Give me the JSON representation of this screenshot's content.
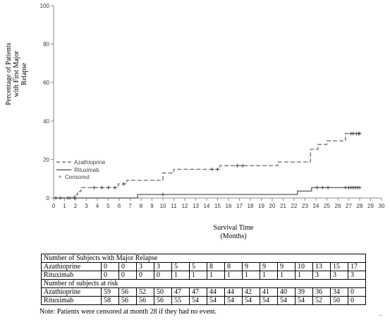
{
  "chart_data": {
    "type": "line",
    "title": "",
    "xlabel": "Survival Time\n(Months)",
    "ylabel": "Percentage of Patients\nwith First Major\nRelapse",
    "xlim": [
      0,
      30
    ],
    "ylim": [
      0,
      100
    ],
    "x_ticks": [
      "0",
      "1",
      "2",
      "3",
      "4",
      "5",
      "6",
      "7",
      "8",
      "9",
      "10",
      "11",
      "12",
      "13",
      "14",
      "15",
      "16",
      "17",
      "18",
      "19",
      "20",
      "21",
      "22",
      "23",
      "24",
      "25",
      "26",
      "27",
      "28",
      "29",
      "30"
    ],
    "y_ticks": [
      "0",
      "20",
      "40",
      "60",
      "80",
      "100"
    ],
    "grid": false,
    "legend_position": "left, inside plot",
    "legend": [
      "Azathioprine",
      "Rituximab",
      "Censored"
    ],
    "series": [
      {
        "name": "Azathioprine",
        "style": "dashed",
        "color": "#777777",
        "steps": [
          [
            0,
            0
          ],
          [
            1.9,
            0
          ],
          [
            1.9,
            1.7
          ],
          [
            2.2,
            1.7
          ],
          [
            2.2,
            3.4
          ],
          [
            2.5,
            3.4
          ],
          [
            2.5,
            5.4
          ],
          [
            5.9,
            5.4
          ],
          [
            5.9,
            7.3
          ],
          [
            6.7,
            7.3
          ],
          [
            6.7,
            9.2
          ],
          [
            10.0,
            9.2
          ],
          [
            10.0,
            13.0
          ],
          [
            11.0,
            13.0
          ],
          [
            11.0,
            14.9
          ],
          [
            15.2,
            14.9
          ],
          [
            15.2,
            16.8
          ],
          [
            20.5,
            16.8
          ],
          [
            20.5,
            18.7
          ],
          [
            23.5,
            18.7
          ],
          [
            23.5,
            25.3
          ],
          [
            24.2,
            25.3
          ],
          [
            24.2,
            27.8
          ],
          [
            25.0,
            27.8
          ],
          [
            25.0,
            29.7
          ],
          [
            26.7,
            29.7
          ],
          [
            26.7,
            33.5
          ],
          [
            28,
            33.5
          ]
        ],
        "censored_x": [
          0.2,
          0.6,
          1.3,
          1.5,
          3.7,
          4.4,
          5.0,
          5.6,
          6.4,
          14.5,
          15.0,
          16.8,
          17.3,
          27.2,
          27.4,
          27.7,
          27.9,
          28.0
        ],
        "censored_y": [
          0,
          0,
          0,
          0,
          5.4,
          5.4,
          5.4,
          5.4,
          7.3,
          14.9,
          14.9,
          16.8,
          16.8,
          33.5,
          33.5,
          33.5,
          33.5,
          33.5
        ]
      },
      {
        "name": "Rituximab",
        "style": "solid",
        "color": "#666666",
        "steps": [
          [
            0,
            0
          ],
          [
            7.7,
            0
          ],
          [
            7.7,
            1.8
          ],
          [
            22.3,
            1.8
          ],
          [
            22.3,
            3.6
          ],
          [
            23.6,
            3.6
          ],
          [
            23.6,
            5.4
          ],
          [
            28,
            5.4
          ]
        ],
        "censored_x": [
          1.9,
          2.0,
          10.0,
          24.1,
          24.6,
          25.1,
          26.7,
          27.0,
          27.2,
          27.4,
          27.6,
          27.8,
          28.0
        ],
        "censored_y": [
          0,
          0,
          1.8,
          5.4,
          5.4,
          5.4,
          5.4,
          5.4,
          5.4,
          5.4,
          5.4,
          5.4,
          5.4
        ]
      }
    ]
  },
  "risk_table": {
    "relapse_header": "Number of Subjects with Major Relapse",
    "risk_header": "Number of subjects at risk",
    "relapse_rows": [
      {
        "label": "Azathioprine",
        "values": [
          "0",
          "0",
          "3",
          "3",
          "5",
          "5",
          "8",
          "8",
          "9",
          "9",
          "9",
          "10",
          "13",
          "15",
          "17"
        ]
      },
      {
        "label": "Rituximab",
        "values": [
          "0",
          "0",
          "0",
          "0",
          "1",
          "1",
          "1",
          "1",
          "1",
          "1",
          "1",
          "1",
          "3",
          "3",
          "3"
        ]
      }
    ],
    "risk_rows": [
      {
        "label": "Azathioprine",
        "values": [
          "59",
          "56",
          "52",
          "50",
          "47",
          "47",
          "44",
          "44",
          "42",
          "41",
          "40",
          "39",
          "36",
          "34",
          "0"
        ]
      },
      {
        "label": "Rituximab",
        "values": [
          "58",
          "56",
          "56",
          "56",
          "55",
          "54",
          "54",
          "54",
          "54",
          "54",
          "54",
          "54",
          "52",
          "50",
          "0"
        ]
      }
    ]
  },
  "note": "Note: Patients were censored at month 28 if they had no event.",
  "icons": {
    "scroll_caret": "caret-up-icon"
  }
}
